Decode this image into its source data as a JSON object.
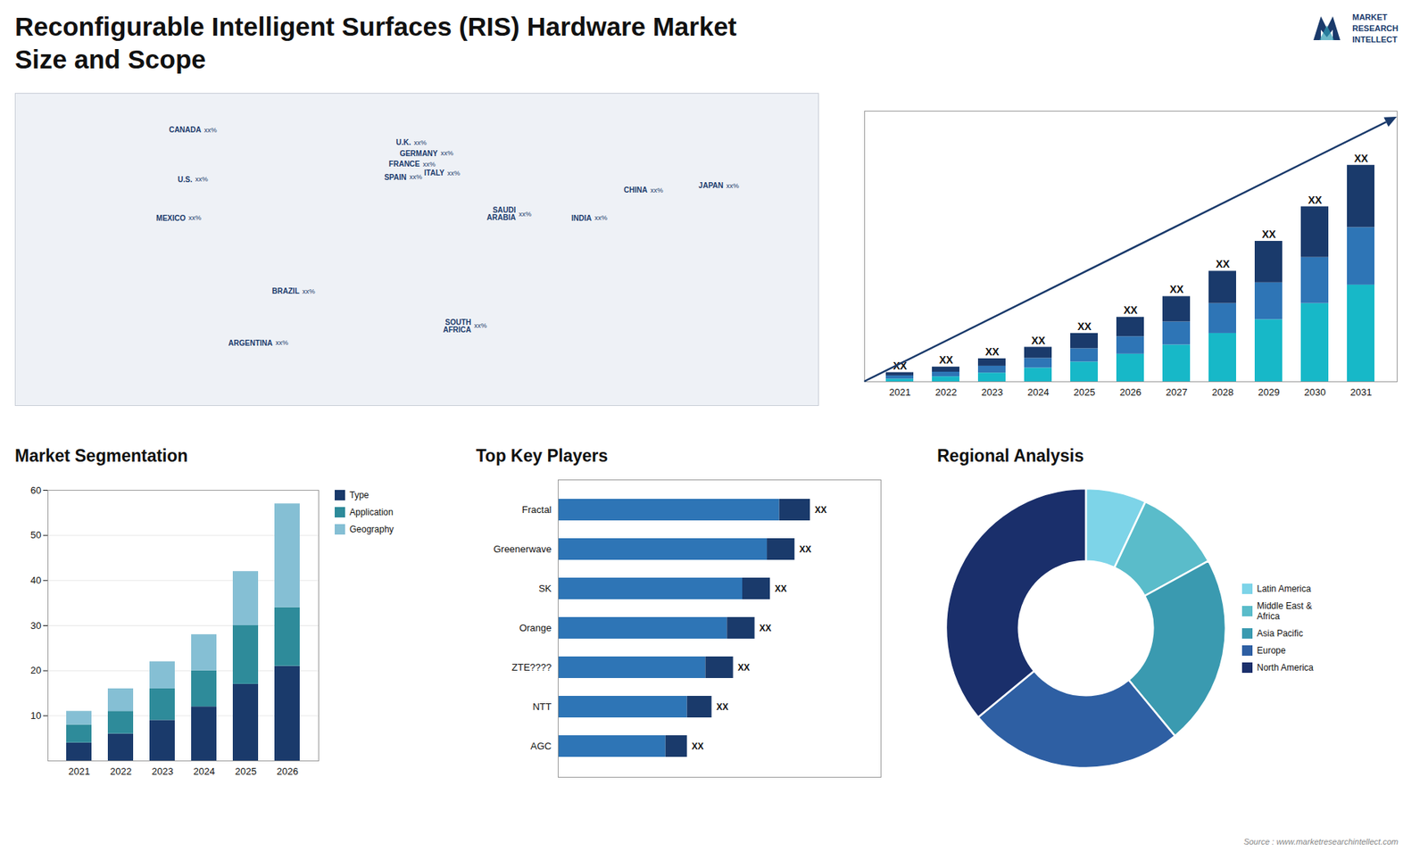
{
  "title": "Reconfigurable Intelligent Surfaces (RIS) Hardware Market",
  "subtitle": "Size and Scope",
  "annotations": [
    "MARKET",
    "RESEARCH",
    "INTELLECT"
  ],
  "caption": "Source : www.marketresearchintellect.com",
  "chart_data": [
    {
      "type": "map",
      "categories": [
        "U.S.",
        "CANADA",
        "MEXICO",
        "BRAZIL",
        "ARGENTINA",
        "U.K.",
        "FRANCE",
        "SPAIN",
        "GERMANY",
        "ITALY",
        "SAUDI\nARABIA",
        "SOUTH\nAFRICA",
        "CHINA",
        "INDIA",
        "JAPAN"
      ],
      "x": [
        -100,
        -96,
        -103,
        -52,
        -64,
        -2,
        2,
        -4,
        10,
        13,
        45,
        25,
        104,
        79,
        138
      ],
      "y": [
        40,
        63,
        22,
        -12,
        -36,
        57,
        47,
        41,
        52,
        43,
        24,
        -28,
        35,
        22,
        37
      ],
      "value_labels": [
        "xx%",
        "xx%",
        "xx%",
        "xx%",
        "xx%",
        "xx%",
        "xx%",
        "xx%",
        "xx%",
        "xx%",
        "xx%",
        "xx%",
        "xx%",
        "xx%",
        "xx%"
      ],
      "color": "#1a3a6b",
      "xlim": [
        -180,
        180
      ],
      "ylim": [
        -65,
        80
      ],
      "tick_labels": false
    },
    {
      "type": "bar",
      "stacked": true,
      "categories": [
        "2021",
        "2022",
        "2023",
        "2024",
        "2025",
        "2026",
        "2027",
        "2028",
        "2029",
        "2030",
        "2031"
      ],
      "series": [
        {
          "color": "#17b8c8",
          "values": [
            0.6,
            1.1,
            1.9,
            3.0,
            4.3,
            6.0,
            8.0,
            10.5,
            13.5,
            17.0,
            21.0
          ]
        },
        {
          "color": "#2e75b6",
          "values": [
            0.7,
            1.0,
            1.5,
            2.1,
            2.9,
            3.8,
            5.0,
            6.5,
            8.0,
            10.0,
            12.5
          ]
        },
        {
          "color": "#1a3a6b",
          "values": [
            0.7,
            1.1,
            1.6,
            2.4,
            3.3,
            4.2,
            5.5,
            7.0,
            9.0,
            11.0,
            13.5
          ]
        }
      ],
      "data_labels": true,
      "value_labels": [
        "XX",
        "XX",
        "XX",
        "XX",
        "XX",
        "XX",
        "XX",
        "XX",
        "XX",
        "XX",
        "XX"
      ],
      "ylim": [
        0,
        58.75
      ],
      "tick_labels": "x"
    },
    {
      "type": "bar",
      "stacked": true,
      "title": "Market Segmentation",
      "categories": [
        "2021",
        "2022",
        "2023",
        "2024",
        "2025",
        "2026"
      ],
      "series": [
        {
          "name": "Type",
          "color": "#1a3a6b",
          "values": [
            4,
            6,
            9,
            12,
            17,
            21
          ]
        },
        {
          "name": "Application",
          "color": "#2e8b9a",
          "values": [
            4,
            5,
            7,
            8,
            13,
            13
          ]
        },
        {
          "name": "Geography",
          "color": "#85bfd4",
          "values": [
            3,
            5,
            6,
            8,
            12,
            23
          ]
        }
      ],
      "ylim": [
        0,
        60
      ],
      "yticks": [
        10,
        20,
        30,
        40,
        50,
        60
      ],
      "grid": true,
      "legend": "right"
    },
    {
      "type": "bar",
      "orientation": "horizontal",
      "stacked": true,
      "title": "Top Key Players",
      "categories": [
        "Fractal",
        "Greenerwave",
        "SK",
        "Orange",
        "ZTE????",
        "NTT",
        "AGC"
      ],
      "series": [
        {
          "color": "#2e75b6",
          "values": [
            0.72,
            0.68,
            0.6,
            0.55,
            0.48,
            0.42,
            0.35
          ]
        },
        {
          "color": "#1a3a6b",
          "values": [
            0.1,
            0.09,
            0.09,
            0.09,
            0.09,
            0.08,
            0.07
          ]
        }
      ],
      "data_labels": true,
      "value_labels": [
        "XX",
        "XX",
        "XX",
        "XX",
        "XX",
        "XX",
        "XX"
      ],
      "xlim": [
        0,
        1.05
      ],
      "tick_labels": "y"
    },
    {
      "type": "donut",
      "title": "Regional Analysis",
      "categories": [
        "Latin America",
        "Middle East &\nAfrica",
        "Asia Pacific",
        "Europe",
        "North America"
      ],
      "values": [
        7,
        10,
        22,
        25,
        36
      ],
      "colors": [
        "#7dd4e8",
        "#5abcca",
        "#3a9ab0",
        "#2e5fa3",
        "#1a2f6b"
      ],
      "legend": "right"
    }
  ]
}
